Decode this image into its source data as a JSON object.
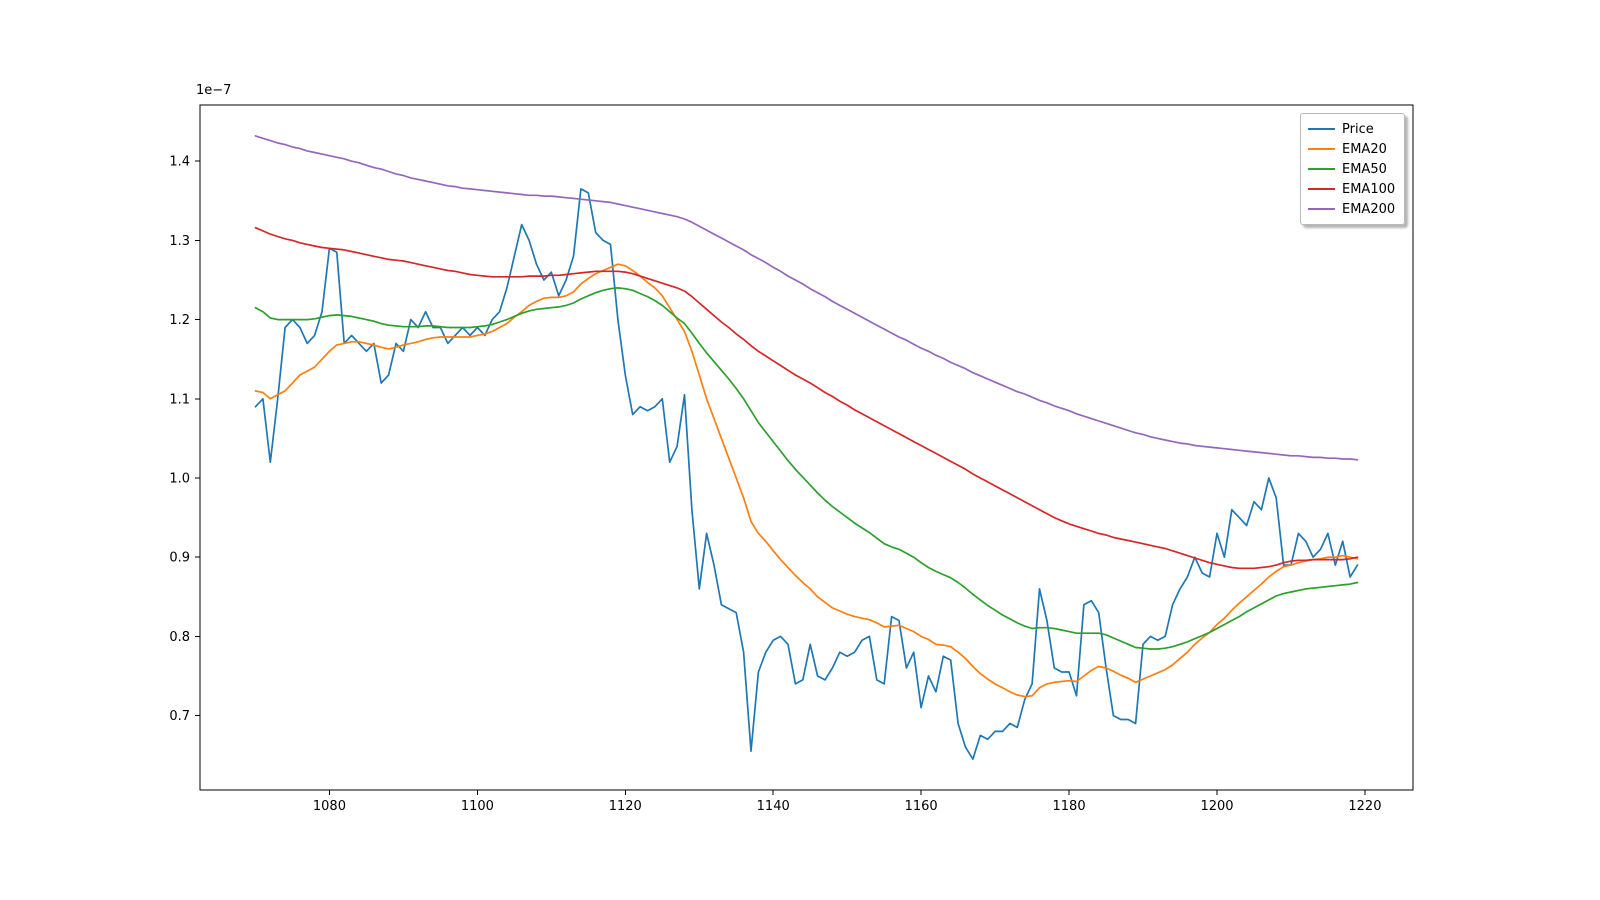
{
  "figure": {
    "background": "#ffffff",
    "offset_label": "1e−7"
  },
  "chart_data": {
    "type": "line",
    "title": "",
    "xlabel": "",
    "ylabel": "",
    "grid": false,
    "legend_position": "upper right",
    "x_ticks": [
      "1080",
      "1100",
      "1120",
      "1140",
      "1160",
      "1180",
      "1200",
      "1220"
    ],
    "x_tick_values": [
      1080,
      1100,
      1120,
      1140,
      1160,
      1180,
      1200,
      1220
    ],
    "y_ticks": [
      "0.7",
      "0.8",
      "0.9",
      "1.0",
      "1.1",
      "1.2",
      "1.3",
      "1.4"
    ],
    "y_tick_values": [
      0.7,
      0.8,
      0.9,
      1.0,
      1.1,
      1.2,
      1.3,
      1.4
    ],
    "y_offset_text": "1e−7",
    "xlim": [
      1062.5,
      1226.5
    ],
    "ylim": [
      0.606,
      1.471
    ],
    "x_start": 1070,
    "x_step": 1,
    "series": [
      {
        "name": "Price",
        "color": "#1f77b4",
        "values": [
          1.09,
          1.1,
          1.02,
          1.1,
          1.19,
          1.2,
          1.19,
          1.17,
          1.18,
          1.21,
          1.29,
          1.285,
          1.17,
          1.18,
          1.17,
          1.16,
          1.17,
          1.12,
          1.13,
          1.17,
          1.16,
          1.2,
          1.19,
          1.21,
          1.19,
          1.19,
          1.17,
          1.18,
          1.19,
          1.18,
          1.19,
          1.18,
          1.2,
          1.21,
          1.24,
          1.28,
          1.32,
          1.3,
          1.27,
          1.25,
          1.26,
          1.23,
          1.25,
          1.28,
          1.365,
          1.36,
          1.31,
          1.3,
          1.295,
          1.2,
          1.13,
          1.08,
          1.09,
          1.085,
          1.09,
          1.1,
          1.02,
          1.04,
          1.105,
          0.96,
          0.86,
          0.93,
          0.89,
          0.84,
          0.835,
          0.83,
          0.78,
          0.655,
          0.755,
          0.78,
          0.795,
          0.8,
          0.79,
          0.74,
          0.745,
          0.79,
          0.75,
          0.745,
          0.76,
          0.78,
          0.775,
          0.78,
          0.795,
          0.8,
          0.745,
          0.74,
          0.825,
          0.82,
          0.76,
          0.78,
          0.71,
          0.75,
          0.73,
          0.775,
          0.77,
          0.69,
          0.66,
          0.645,
          0.675,
          0.67,
          0.68,
          0.68,
          0.69,
          0.685,
          0.72,
          0.74,
          0.86,
          0.82,
          0.76,
          0.755,
          0.755,
          0.725,
          0.84,
          0.845,
          0.83,
          0.76,
          0.7,
          0.695,
          0.695,
          0.69,
          0.79,
          0.8,
          0.795,
          0.8,
          0.84,
          0.86,
          0.875,
          0.9,
          0.88,
          0.875,
          0.93,
          0.9,
          0.96,
          0.95,
          0.94,
          0.97,
          0.96,
          1.0,
          0.975,
          0.89,
          0.89,
          0.93,
          0.92,
          0.9,
          0.91,
          0.93,
          0.89,
          0.92,
          0.875,
          0.89
        ]
      },
      {
        "name": "EMA20",
        "color": "#ff7f0e",
        "values": [
          1.11,
          1.108,
          1.1,
          1.105,
          1.11,
          1.12,
          1.13,
          1.135,
          1.14,
          1.15,
          1.16,
          1.168,
          1.17,
          1.172,
          1.172,
          1.17,
          1.168,
          1.165,
          1.163,
          1.165,
          1.168,
          1.17,
          1.172,
          1.175,
          1.177,
          1.178,
          1.178,
          1.178,
          1.178,
          1.178,
          1.18,
          1.182,
          1.185,
          1.19,
          1.195,
          1.203,
          1.21,
          1.218,
          1.223,
          1.227,
          1.228,
          1.228,
          1.23,
          1.235,
          1.245,
          1.252,
          1.258,
          1.262,
          1.266,
          1.27,
          1.268,
          1.262,
          1.255,
          1.247,
          1.24,
          1.23,
          1.215,
          1.2,
          1.185,
          1.16,
          1.13,
          1.1,
          1.075,
          1.05,
          1.025,
          1.0,
          0.975,
          0.945,
          0.93,
          0.92,
          0.908,
          0.897,
          0.887,
          0.877,
          0.868,
          0.86,
          0.85,
          0.843,
          0.836,
          0.832,
          0.828,
          0.825,
          0.823,
          0.821,
          0.817,
          0.812,
          0.813,
          0.814,
          0.81,
          0.806,
          0.8,
          0.796,
          0.79,
          0.789,
          0.787,
          0.78,
          0.772,
          0.762,
          0.753,
          0.746,
          0.74,
          0.735,
          0.73,
          0.726,
          0.724,
          0.725,
          0.735,
          0.74,
          0.742,
          0.743,
          0.744,
          0.743,
          0.75,
          0.757,
          0.762,
          0.76,
          0.756,
          0.751,
          0.747,
          0.742,
          0.746,
          0.75,
          0.754,
          0.758,
          0.764,
          0.772,
          0.78,
          0.79,
          0.798,
          0.805,
          0.815,
          0.823,
          0.833,
          0.842,
          0.85,
          0.858,
          0.866,
          0.875,
          0.882,
          0.888,
          0.89,
          0.893,
          0.895,
          0.897,
          0.898,
          0.9,
          0.9,
          0.902,
          0.9,
          0.898
        ]
      },
      {
        "name": "EMA50",
        "color": "#2ca02c",
        "values": [
          1.215,
          1.21,
          1.202,
          1.2,
          1.2,
          1.2,
          1.2,
          1.2,
          1.201,
          1.203,
          1.205,
          1.206,
          1.205,
          1.204,
          1.202,
          1.2,
          1.198,
          1.195,
          1.193,
          1.192,
          1.191,
          1.191,
          1.191,
          1.192,
          1.192,
          1.191,
          1.19,
          1.19,
          1.19,
          1.19,
          1.191,
          1.192,
          1.194,
          1.197,
          1.2,
          1.204,
          1.208,
          1.211,
          1.213,
          1.214,
          1.215,
          1.216,
          1.218,
          1.221,
          1.226,
          1.23,
          1.234,
          1.237,
          1.239,
          1.24,
          1.239,
          1.237,
          1.233,
          1.229,
          1.224,
          1.218,
          1.21,
          1.202,
          1.195,
          1.183,
          1.17,
          1.158,
          1.147,
          1.136,
          1.125,
          1.113,
          1.1,
          1.085,
          1.07,
          1.058,
          1.046,
          1.034,
          1.022,
          1.011,
          1.001,
          0.991,
          0.981,
          0.972,
          0.964,
          0.957,
          0.95,
          0.943,
          0.937,
          0.931,
          0.924,
          0.917,
          0.913,
          0.91,
          0.905,
          0.9,
          0.893,
          0.887,
          0.882,
          0.878,
          0.874,
          0.868,
          0.861,
          0.853,
          0.846,
          0.839,
          0.833,
          0.827,
          0.822,
          0.817,
          0.813,
          0.81,
          0.811,
          0.811,
          0.81,
          0.808,
          0.806,
          0.804,
          0.804,
          0.804,
          0.804,
          0.802,
          0.798,
          0.794,
          0.79,
          0.786,
          0.785,
          0.784,
          0.784,
          0.785,
          0.787,
          0.79,
          0.793,
          0.797,
          0.801,
          0.805,
          0.81,
          0.815,
          0.82,
          0.825,
          0.831,
          0.836,
          0.841,
          0.846,
          0.851,
          0.854,
          0.856,
          0.858,
          0.86,
          0.861,
          0.862,
          0.863,
          0.864,
          0.865,
          0.866,
          0.868
        ]
      },
      {
        "name": "EMA100",
        "color": "#d62728",
        "values": [
          1.316,
          1.312,
          1.308,
          1.305,
          1.302,
          1.3,
          1.297,
          1.295,
          1.293,
          1.291,
          1.29,
          1.289,
          1.288,
          1.286,
          1.284,
          1.282,
          1.28,
          1.278,
          1.276,
          1.275,
          1.274,
          1.272,
          1.27,
          1.268,
          1.266,
          1.264,
          1.262,
          1.261,
          1.259,
          1.257,
          1.256,
          1.255,
          1.254,
          1.254,
          1.254,
          1.254,
          1.254,
          1.255,
          1.255,
          1.255,
          1.256,
          1.256,
          1.257,
          1.258,
          1.259,
          1.26,
          1.261,
          1.261,
          1.261,
          1.261,
          1.26,
          1.258,
          1.255,
          1.252,
          1.249,
          1.246,
          1.243,
          1.24,
          1.236,
          1.229,
          1.221,
          1.213,
          1.205,
          1.197,
          1.19,
          1.182,
          1.175,
          1.167,
          1.16,
          1.154,
          1.148,
          1.142,
          1.136,
          1.13,
          1.125,
          1.12,
          1.114,
          1.108,
          1.103,
          1.097,
          1.092,
          1.086,
          1.081,
          1.076,
          1.071,
          1.066,
          1.061,
          1.056,
          1.051,
          1.046,
          1.041,
          1.036,
          1.031,
          1.026,
          1.021,
          1.016,
          1.011,
          1.005,
          1.0,
          0.995,
          0.99,
          0.985,
          0.98,
          0.975,
          0.97,
          0.965,
          0.96,
          0.955,
          0.95,
          0.946,
          0.942,
          0.939,
          0.936,
          0.933,
          0.93,
          0.928,
          0.925,
          0.923,
          0.921,
          0.919,
          0.917,
          0.915,
          0.913,
          0.911,
          0.908,
          0.905,
          0.902,
          0.899,
          0.896,
          0.893,
          0.891,
          0.889,
          0.887,
          0.886,
          0.886,
          0.886,
          0.887,
          0.888,
          0.89,
          0.893,
          0.895,
          0.896,
          0.896,
          0.897,
          0.897,
          0.897,
          0.897,
          0.897,
          0.898,
          0.9
        ]
      },
      {
        "name": "EMA200",
        "color": "#9467bd",
        "values": [
          1.432,
          1.429,
          1.426,
          1.423,
          1.421,
          1.418,
          1.416,
          1.413,
          1.411,
          1.409,
          1.407,
          1.405,
          1.403,
          1.4,
          1.398,
          1.395,
          1.392,
          1.39,
          1.387,
          1.384,
          1.382,
          1.379,
          1.377,
          1.375,
          1.373,
          1.371,
          1.369,
          1.368,
          1.366,
          1.365,
          1.364,
          1.363,
          1.362,
          1.361,
          1.36,
          1.359,
          1.358,
          1.357,
          1.357,
          1.356,
          1.356,
          1.355,
          1.354,
          1.353,
          1.352,
          1.351,
          1.35,
          1.349,
          1.348,
          1.346,
          1.344,
          1.342,
          1.34,
          1.338,
          1.336,
          1.334,
          1.332,
          1.33,
          1.327,
          1.323,
          1.318,
          1.313,
          1.308,
          1.303,
          1.298,
          1.293,
          1.288,
          1.282,
          1.277,
          1.272,
          1.266,
          1.261,
          1.255,
          1.25,
          1.245,
          1.239,
          1.234,
          1.229,
          1.223,
          1.218,
          1.213,
          1.208,
          1.203,
          1.198,
          1.193,
          1.188,
          1.183,
          1.178,
          1.174,
          1.169,
          1.164,
          1.16,
          1.155,
          1.151,
          1.146,
          1.142,
          1.138,
          1.133,
          1.129,
          1.125,
          1.121,
          1.117,
          1.113,
          1.109,
          1.106,
          1.102,
          1.098,
          1.095,
          1.091,
          1.088,
          1.085,
          1.081,
          1.078,
          1.075,
          1.072,
          1.069,
          1.066,
          1.063,
          1.06,
          1.057,
          1.055,
          1.052,
          1.05,
          1.048,
          1.046,
          1.044,
          1.043,
          1.041,
          1.04,
          1.039,
          1.038,
          1.037,
          1.036,
          1.035,
          1.034,
          1.033,
          1.032,
          1.031,
          1.03,
          1.029,
          1.028,
          1.028,
          1.027,
          1.026,
          1.026,
          1.025,
          1.025,
          1.024,
          1.024,
          1.023
        ]
      }
    ]
  }
}
